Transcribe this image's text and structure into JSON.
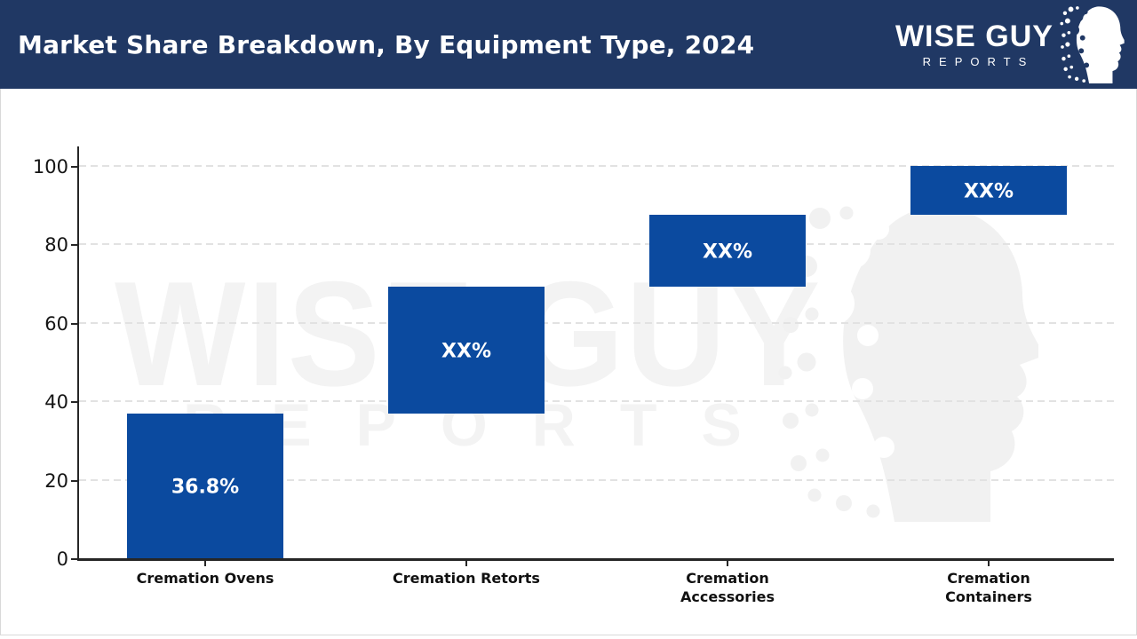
{
  "header": {
    "title": "Market Share Breakdown, By Equipment Type, 2024",
    "bg_color": "#203864",
    "logo": {
      "line1": "WISE GUY",
      "line2": "REPORTS",
      "head_icon": "dotted-head-profile"
    }
  },
  "watermark": {
    "line1": "WISE GUY",
    "line2": "REPORTS",
    "head_icon": "dotted-head-profile"
  },
  "chart_data": {
    "type": "bar",
    "subtype": "waterfall",
    "title": "Market Share Breakdown, By Equipment Type, 2024",
    "categories": [
      "Cremation Ovens",
      "Cremation Retorts",
      "Cremation Accessories",
      "Cremation Containers"
    ],
    "category_lines": [
      "Cremation Ovens",
      "Cremation Retorts",
      "Cremation\nAccessories",
      "Cremation\nContainers"
    ],
    "segments": [
      {
        "category": "Cremation Ovens",
        "start": 0,
        "end": 36.8,
        "label": "36.8%"
      },
      {
        "category": "Cremation Retorts",
        "start": 36.8,
        "end": 69.2,
        "label": "XX%"
      },
      {
        "category": "Cremation Accessories",
        "start": 69.2,
        "end": 87.5,
        "label": "XX%"
      },
      {
        "category": "Cremation Containers",
        "start": 87.5,
        "end": 100,
        "label": "XX%"
      }
    ],
    "y_ticks": [
      0,
      20,
      40,
      60,
      80,
      100
    ],
    "ylim": [
      0,
      105
    ],
    "xlabel": "",
    "ylabel": "",
    "grid": "horizontal-dashed",
    "legend": "none",
    "bar_color": "#0b4a9f",
    "label_color": "#ffffff"
  }
}
